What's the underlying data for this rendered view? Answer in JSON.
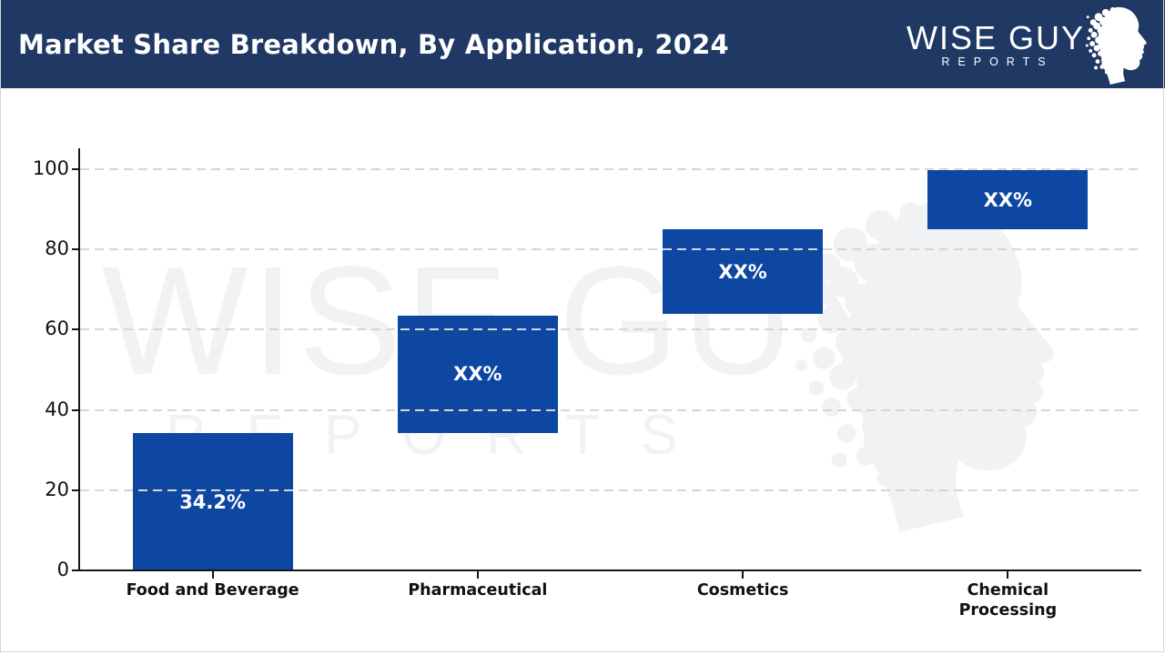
{
  "header": {
    "title": "Market Share Breakdown, By Application, 2024",
    "logo": {
      "primary": "WISE GUY",
      "secondary": "REPORTS"
    }
  },
  "watermark": {
    "primary": "WISE GUY",
    "secondary": "REPORTS"
  },
  "chart_data": {
    "type": "bar",
    "subtype": "floating-segment-breakdown",
    "title": "Market Share Breakdown, By Application, 2024",
    "categories": [
      "Food and Beverage",
      "Pharmaceutical",
      "Cosmetics",
      "Chemical\nProcessing"
    ],
    "series": [
      {
        "name": "Food and Beverage",
        "start": 0,
        "end": 34.2,
        "label": "34.2%"
      },
      {
        "name": "Pharmaceutical",
        "start": 34.2,
        "end": 63.6,
        "label": "XX%"
      },
      {
        "name": "Cosmetics",
        "start": 63.9,
        "end": 85.0,
        "label": "XX%"
      },
      {
        "name": "Chemical Processing",
        "start": 85.0,
        "end": 99.8,
        "label": "XX%"
      }
    ],
    "xlabel": "",
    "ylabel": "",
    "ylim": [
      0,
      100
    ],
    "yticks": [
      0,
      20,
      40,
      60,
      80,
      100
    ],
    "grid": {
      "axis": "y",
      "style": "dashed",
      "color": "#d6d6d6",
      "drawn_over_bars": true
    },
    "legend": "none",
    "bar_color": "#0d47a1",
    "bar_label_color": "#ffffff",
    "axis_color": "#161616",
    "header_bg": "#1f3864",
    "watermark_color": "#f1f2f4"
  }
}
